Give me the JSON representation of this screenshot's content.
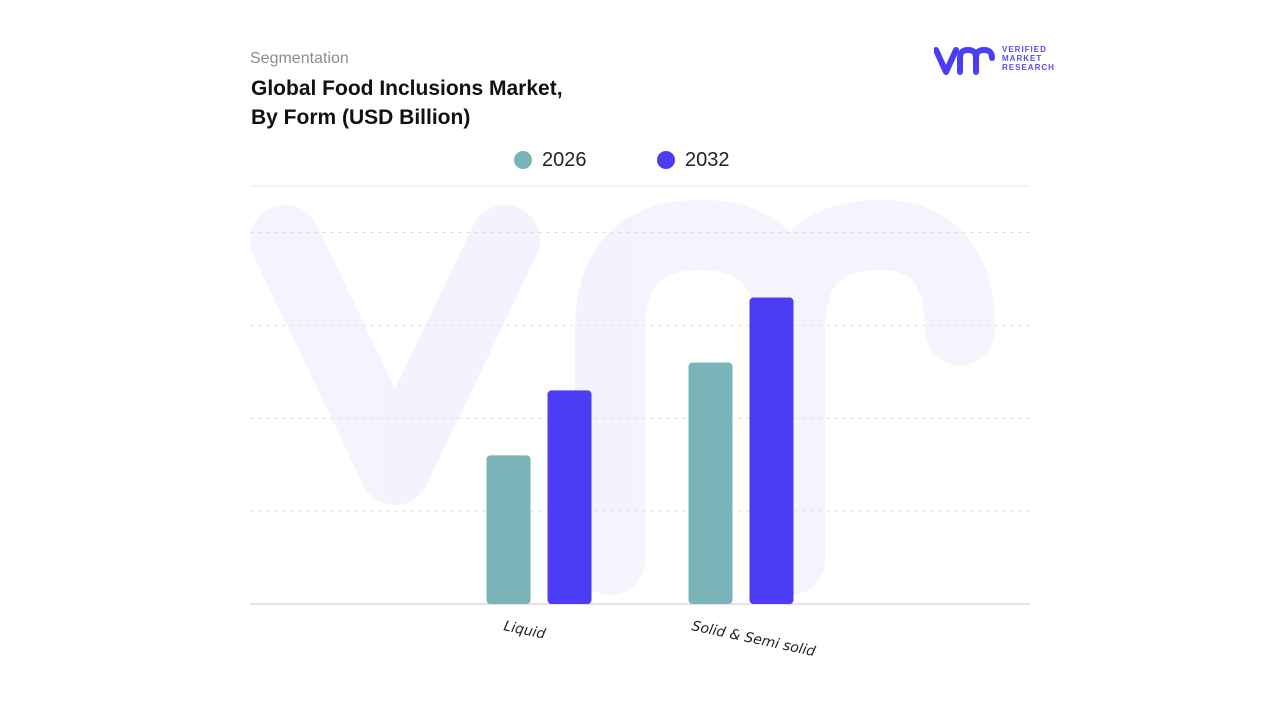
{
  "header": {
    "subtitle": "Segmentation",
    "title_line1": "Global Food Inclusions Market,",
    "title_line2": "By Form (USD Billion)"
  },
  "logo": {
    "line1": "VERIFIED",
    "line2": "MARKET",
    "line3": "RESEARCH",
    "brand_color": "#4b3cf5"
  },
  "chart_data": {
    "type": "bar",
    "categories": [
      "Liquid",
      "Solid & Semi solid"
    ],
    "series": [
      {
        "name": "2026",
        "color": "#7bb4b8",
        "values": [
          1.6,
          2.6
        ]
      },
      {
        "name": "2032",
        "color": "#4b3cf5",
        "values": [
          2.3,
          3.3
        ]
      }
    ],
    "ylim": [
      0,
      4.5
    ],
    "grid": true,
    "legend_position": "top-center"
  }
}
